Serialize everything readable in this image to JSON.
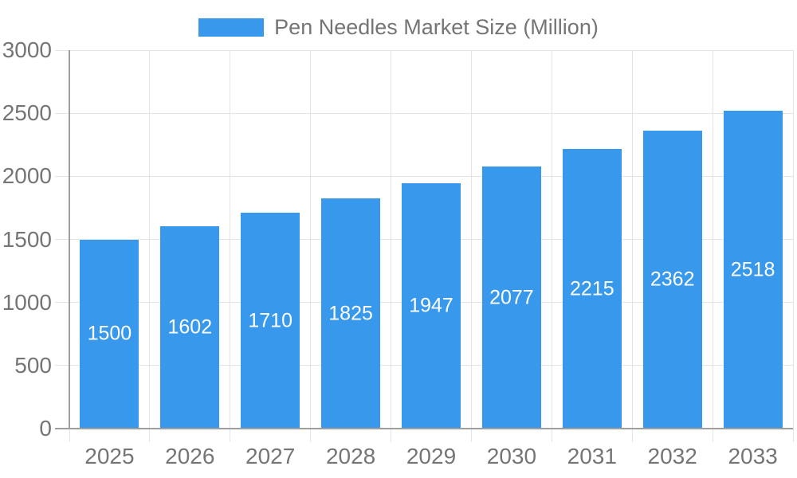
{
  "legend": {
    "label": "Pen Needles Market Size (Million)",
    "swatch_color": "#3898ec"
  },
  "chart_data": {
    "type": "bar",
    "title": "Pen Needles Market Size (Million)",
    "categories": [
      "2025",
      "2026",
      "2027",
      "2028",
      "2029",
      "2030",
      "2031",
      "2032",
      "2033"
    ],
    "values": [
      1500,
      1602,
      1710,
      1825,
      1947,
      2077,
      2215,
      2362,
      2518
    ],
    "xlabel": "",
    "ylabel": "",
    "ylim": [
      0,
      3000
    ],
    "yticks": [
      0,
      500,
      1000,
      1500,
      2000,
      2500,
      3000
    ],
    "grid": true,
    "legend_position": "top-center",
    "bar_color": "#3898ec",
    "value_label_color": "#ffffff",
    "axis_text_color": "#757575",
    "gridline_color": "#e4e4e4",
    "axis_line_color": "#9e9e9e",
    "background_color": "#ffffff"
  }
}
